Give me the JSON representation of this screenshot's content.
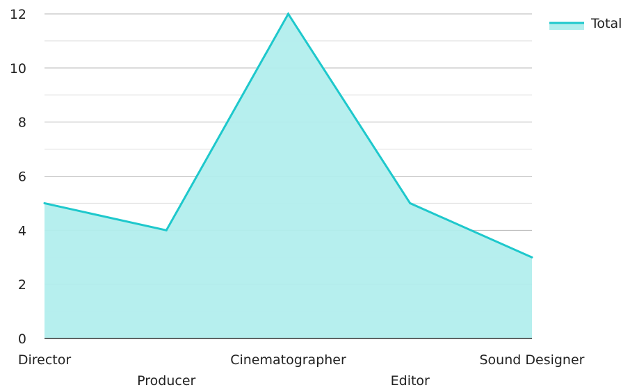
{
  "chart_data": {
    "type": "area",
    "categories": [
      "Director",
      "Producer",
      "Cinematographer",
      "Editor",
      "Sound Designer"
    ],
    "series": [
      {
        "name": "Total",
        "values": [
          5,
          4,
          12,
          5,
          3
        ]
      }
    ],
    "yticks": [
      "0",
      "2",
      "4",
      "6",
      "8",
      "10",
      "12"
    ],
    "ylim": [
      0,
      12
    ],
    "grid": true,
    "legend_position": "top-right",
    "colors": {
      "line": "#1ec8cc",
      "fill": "#b2eeed",
      "grid_major": "#b4b4b4",
      "grid_minor": "#dedede",
      "axis": "#333333"
    }
  }
}
